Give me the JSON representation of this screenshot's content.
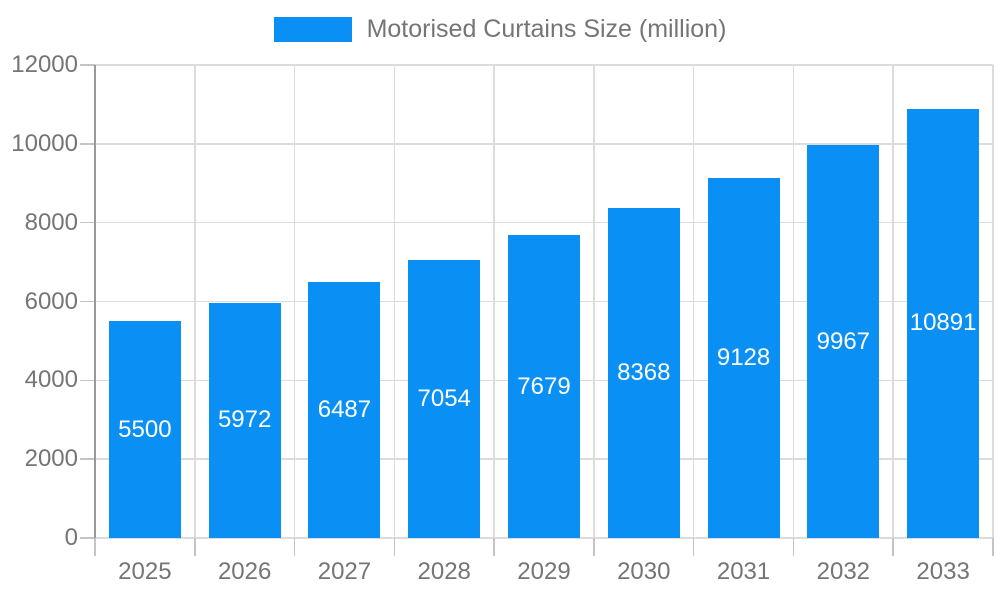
{
  "chart_data": {
    "type": "bar",
    "title": "Motorised Curtains Size (million)",
    "categories": [
      "2025",
      "2026",
      "2027",
      "2028",
      "2029",
      "2030",
      "2031",
      "2032",
      "2033"
    ],
    "values": [
      5500,
      5972,
      6487,
      7054,
      7679,
      8368,
      9128,
      9967,
      10891
    ],
    "xlabel": "",
    "ylabel": "",
    "ylim": [
      0,
      12000
    ],
    "y_ticks": [
      0,
      2000,
      4000,
      6000,
      8000,
      10000,
      12000
    ],
    "grid": true,
    "legend_position": "top",
    "bar_labels_inside": true,
    "colors": {
      "bar": "#0a90f5",
      "grid": "#dcdcdc",
      "axis": "#999999",
      "tick": "#c4c4c4",
      "text": "#757575",
      "bar_label": "#ffffff",
      "background": "#ffffff"
    }
  }
}
